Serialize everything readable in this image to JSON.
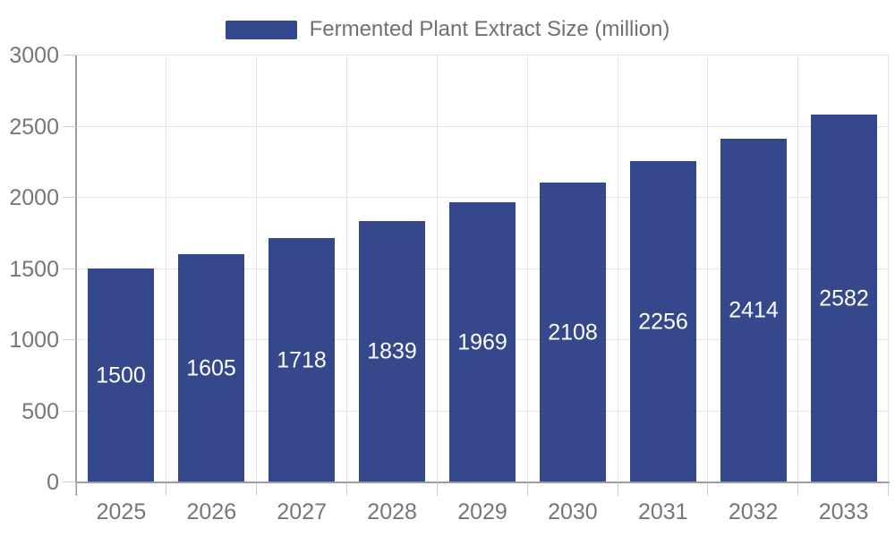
{
  "chart_data": {
    "type": "bar",
    "title": "Fermented Plant Extract Size (million)",
    "legend_entries": [
      "Fermented Plant Extract Size (million)"
    ],
    "legend_position": "top-center",
    "categories": [
      "2025",
      "2026",
      "2027",
      "2028",
      "2029",
      "2030",
      "2031",
      "2032",
      "2033"
    ],
    "values": [
      1500,
      1605,
      1718,
      1839,
      1969,
      2108,
      2256,
      2414,
      2582
    ],
    "xlabel": "",
    "ylabel": "",
    "ylim": [
      0,
      3000
    ],
    "yticks": [
      0,
      500,
      1000,
      1500,
      2000,
      2500,
      3000
    ],
    "grid": true,
    "bar_value_labels_visible": true,
    "colors": {
      "bar": "#35488C",
      "bar_label": "#FFFFFF",
      "axis_text": "#74767E",
      "legend_text": "#6E7079",
      "grid_line": "#E2E2E8",
      "axis_line": "#9B9BA3",
      "tick_line": "#CCCCD2",
      "background": "#FFFFFF"
    }
  }
}
